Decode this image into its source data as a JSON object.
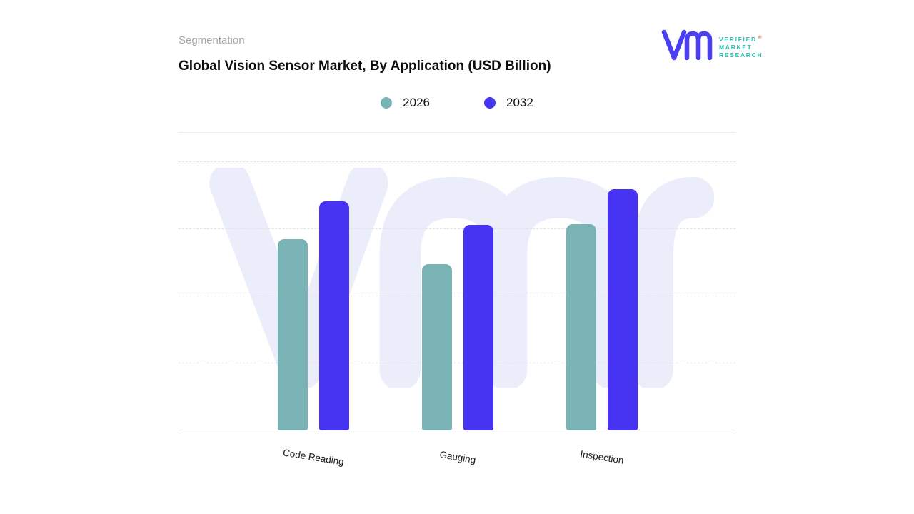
{
  "header": {
    "eyebrow": "Segmentation",
    "title": "Global Vision Sensor Market, By Application (USD Billion)"
  },
  "logo": {
    "lines": [
      "VERIFIED",
      "MARKET",
      "RESEARCH"
    ],
    "registered": "®",
    "mark_color": "#4b3ff2",
    "text_color": "#2fbdb3"
  },
  "chart_data": {
    "type": "bar",
    "title": "Global Vision Sensor Market, By Application (USD Billion)",
    "categories": [
      "Code Reading",
      "Gauging",
      "Inspection"
    ],
    "series": [
      {
        "name": "2026",
        "color": "#79b3b5",
        "values": [
          2.85,
          2.48,
          3.07
        ]
      },
      {
        "name": "2032",
        "color": "#4733f2",
        "values": [
          3.42,
          3.06,
          3.6
        ]
      }
    ],
    "xlabel": "",
    "ylabel": "",
    "ylim": [
      0,
      4
    ],
    "grid": "horizontal-dashed",
    "legend_position": "top-center",
    "y_axis_labels_visible": false
  }
}
